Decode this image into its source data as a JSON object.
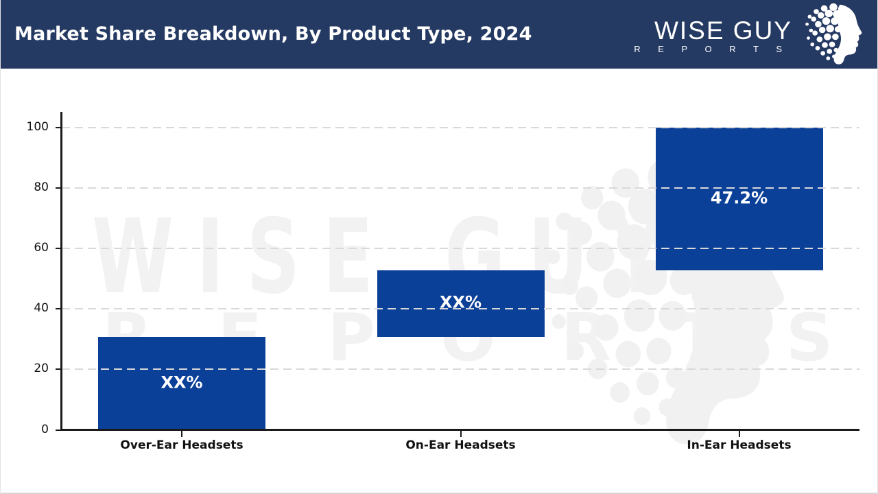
{
  "header": {
    "title": "Market Share Breakdown, By Product Type, 2024",
    "logo": {
      "line1": "WISE GUY",
      "line2": "R E P O R T S"
    }
  },
  "watermark": {
    "line1": "WISE GUY",
    "line2": "R E P O R T S"
  },
  "colors": {
    "header_bg": "#253a63",
    "bar": "#0b4098",
    "grid": "#d9d9d9",
    "axis": "#1a1a1a",
    "watermark": "#f2f2f2",
    "bar_label_text": "#ffffff"
  },
  "chart_data": {
    "type": "bar",
    "subtype": "floating-stacked-percentage",
    "title": "Market Share Breakdown, By Product Type, 2024",
    "categories": [
      "Over-Ear Headsets",
      "On-Ear Headsets",
      "In-Ear Headsets"
    ],
    "segments": [
      {
        "category": "Over-Ear Headsets",
        "start": 0,
        "end": 30.8,
        "label": "XX%"
      },
      {
        "category": "On-Ear Headsets",
        "start": 30.8,
        "end": 52.8,
        "label": "XX%"
      },
      {
        "category": "In-Ear Headsets",
        "start": 52.8,
        "end": 100,
        "label": "47.2%"
      }
    ],
    "xlabel": "",
    "ylabel": "",
    "yticks": [
      0,
      20,
      40,
      60,
      80,
      100
    ],
    "ylim": [
      0,
      105
    ],
    "grid": "horizontal-dashed",
    "legend": "none"
  }
}
